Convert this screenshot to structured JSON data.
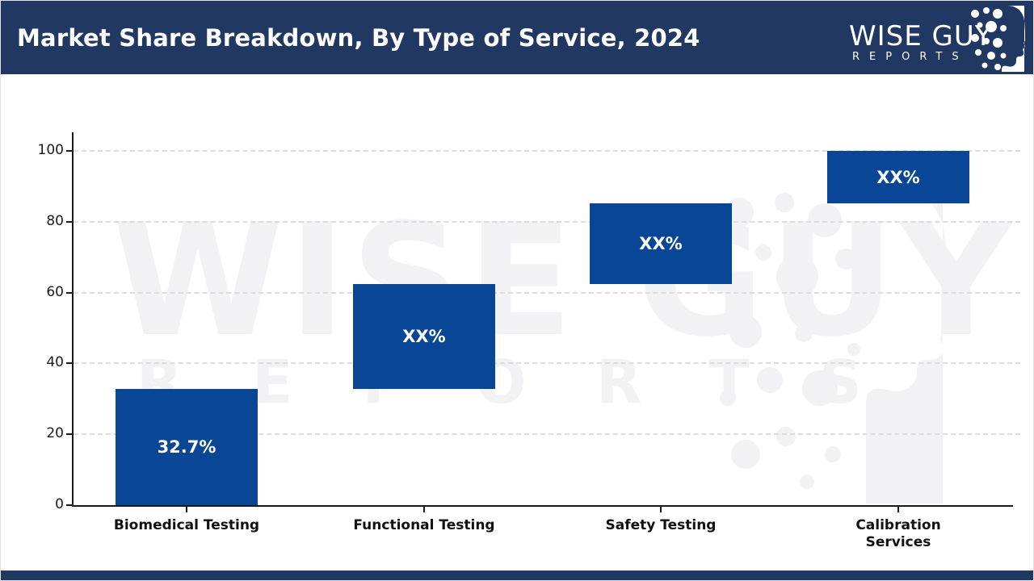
{
  "header": {
    "title": "Market Share Breakdown, By Type of Service, 2024",
    "logo": {
      "line1": "WISE GUY",
      "line2": "REPORTS"
    }
  },
  "watermark": {
    "line1": "WISE GUY",
    "line2": "REPORTS"
  },
  "chart_data": {
    "type": "bar",
    "variant": "waterfall",
    "title": "Market Share Breakdown, By Type of Service, 2024",
    "categories": [
      "Biomedical Testing",
      "Functional Testing",
      "Safety Testing",
      "Calibration\nServices"
    ],
    "bars": [
      {
        "start": 0,
        "end": 32.7,
        "label": "32.7%"
      },
      {
        "start": 32.7,
        "end": 62.4,
        "label": "XX%"
      },
      {
        "start": 62.4,
        "end": 85.1,
        "label": "XX%"
      },
      {
        "start": 85.1,
        "end": 100,
        "label": "XX%"
      }
    ],
    "xlabel": "",
    "ylabel": "",
    "ylim": [
      0,
      105
    ],
    "yticks": [
      0,
      20,
      40,
      60,
      80,
      100
    ],
    "grid": "horizontal-dashed",
    "legend": "none",
    "colors": {
      "bar": "#0a4696",
      "bar_label": "#ffffff",
      "header_bg": "#213863",
      "footer_bg": "#213863",
      "axis": "#1a1a1a",
      "gridline": "#dcdcdc",
      "watermark": "#f2f2f4"
    }
  }
}
